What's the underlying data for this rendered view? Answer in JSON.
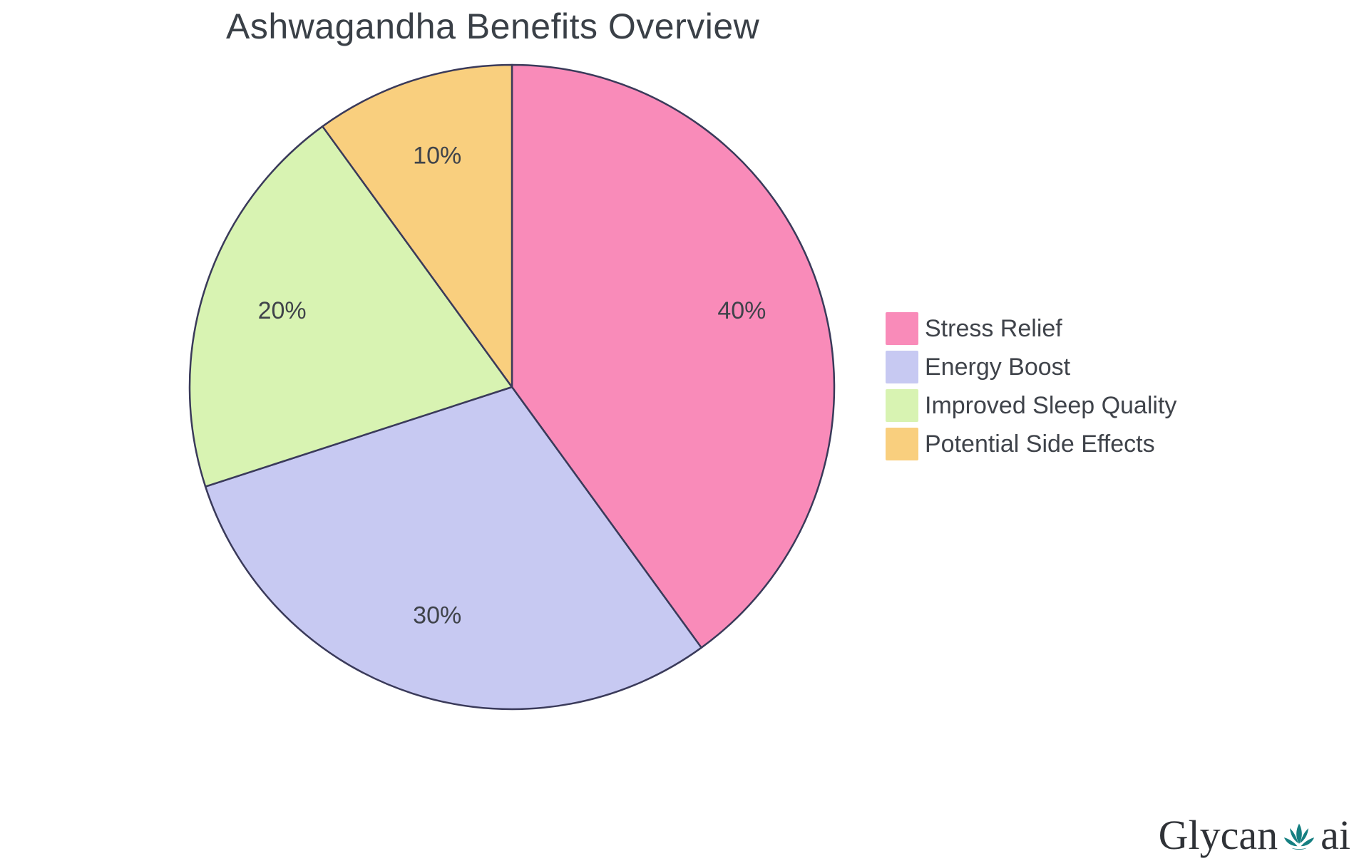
{
  "chart_data": {
    "type": "pie",
    "title": "Ashwagandha Benefits Overview",
    "labels": [
      "Stress Relief",
      "Energy Boost",
      "Improved Sleep Quality",
      "Potential Side Effects"
    ],
    "values": [
      40,
      30,
      20,
      10
    ],
    "percent_labels": [
      "40%",
      "30%",
      "20%",
      "10%"
    ],
    "colors": [
      "#F98BB9",
      "#C7C9F2",
      "#D8F3B2",
      "#F9CF7E"
    ],
    "slice_border_color": "#3A3A5A",
    "label_color": "#3F434A",
    "background": "#FFFFFF",
    "legend_position": "right",
    "start_angle_deg": -90,
    "direction": "clockwise"
  },
  "branding": {
    "brand_left": "Glycan",
    "brand_right": "ai",
    "logo_icon": "lotus-icon",
    "logo_color": "#157F81",
    "text_color": "#2F3237"
  }
}
